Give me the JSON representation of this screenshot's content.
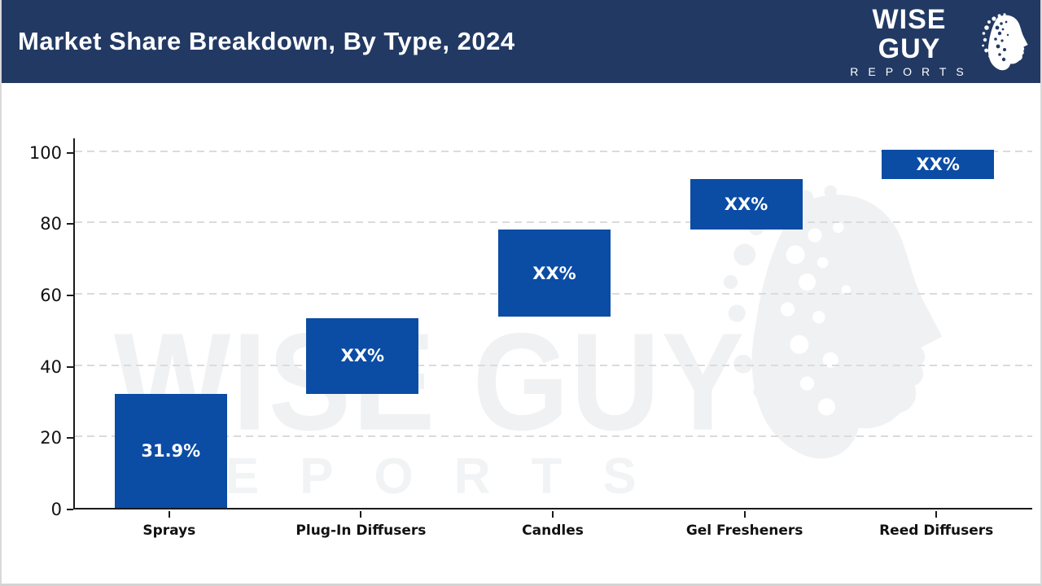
{
  "header": {
    "title": "Market Share Breakdown, By Type, 2024",
    "logo": {
      "wordmark": "WISE GUY",
      "subtext": "REPORTS"
    }
  },
  "watermark": {
    "line1": "WISE GUY",
    "line2": "REPORTS"
  },
  "colors": {
    "header_bg": "#223963",
    "bar_fill": "#0b4ca4",
    "bar_label_text": "#ffffff",
    "axis": "#1a1a1a",
    "gridline": "#dbdbdb",
    "watermark": "#f0f1f3"
  },
  "chart_data": {
    "type": "bar",
    "subtype": "floating-waterfall",
    "title": "Market Share Breakdown, By Type, 2024",
    "categories": [
      "Sprays",
      "Plug-In Diffusers",
      "Candles",
      "Gel Fresheners",
      "Reed Diffusers"
    ],
    "bars": [
      {
        "category": "Sprays",
        "start": 0,
        "end": 31.9,
        "label": "31.9%"
      },
      {
        "category": "Plug-In Diffusers",
        "start": 31.9,
        "end": 53.2,
        "label": "XX%"
      },
      {
        "category": "Candles",
        "start": 53.5,
        "end": 78.0,
        "label": "XX%"
      },
      {
        "category": "Gel Fresheners",
        "start": 78.0,
        "end": 92.1,
        "label": "XX%"
      },
      {
        "category": "Reed Diffusers",
        "start": 92.1,
        "end": 100.3,
        "label": "XX%"
      }
    ],
    "xlabel": "",
    "ylabel": "",
    "yticks": [
      0,
      20,
      40,
      60,
      80,
      100
    ],
    "ylim": [
      0,
      104
    ],
    "grid": "horizontal-dashed",
    "legend": "none"
  }
}
